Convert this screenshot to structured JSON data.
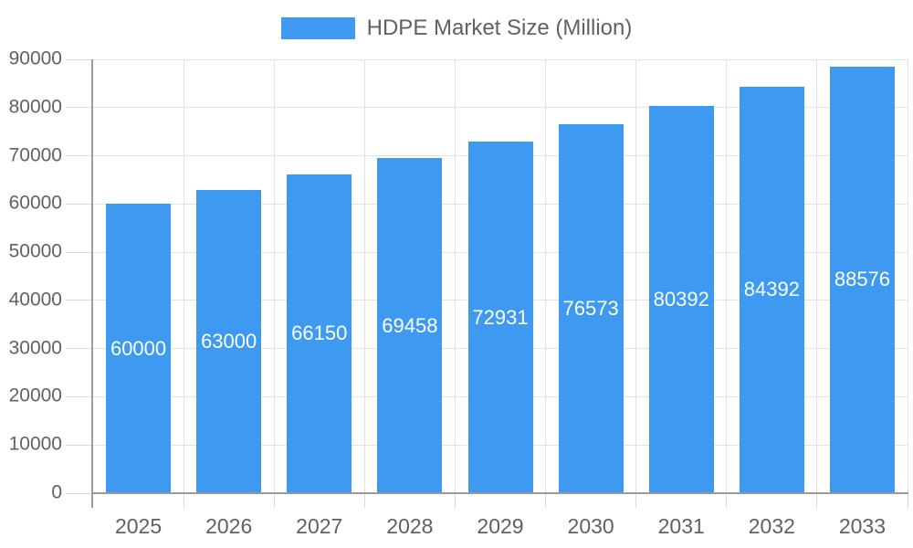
{
  "chart_data": {
    "type": "bar",
    "categories": [
      "2025",
      "2026",
      "2027",
      "2028",
      "2029",
      "2030",
      "2031",
      "2032",
      "2033"
    ],
    "series": [
      {
        "name": "HDPE Market Size (Million)",
        "values": [
          60000,
          63000,
          66150,
          69458,
          72931,
          76573,
          80392,
          84392,
          88576
        ]
      }
    ],
    "ylim": [
      0,
      90000
    ],
    "ytick_step": 10000,
    "ytick_labels": [
      "0",
      "10000",
      "20000",
      "30000",
      "40000",
      "50000",
      "60000",
      "70000",
      "80000",
      "90000"
    ],
    "grid": "horizontal and vertical gridlines on",
    "legend_position": "top-center",
    "bar_label_position": "inside-center",
    "xlabel": "",
    "ylabel": ""
  },
  "colors": {
    "bar": "#3D9AF0",
    "bar_label": "#FFFFFF",
    "axis_line": "#9A9A9A",
    "grid_line": "#E3E3E3",
    "tick_line": "#D9D9D9",
    "text": "#616161",
    "background": "#FFFFFF"
  }
}
